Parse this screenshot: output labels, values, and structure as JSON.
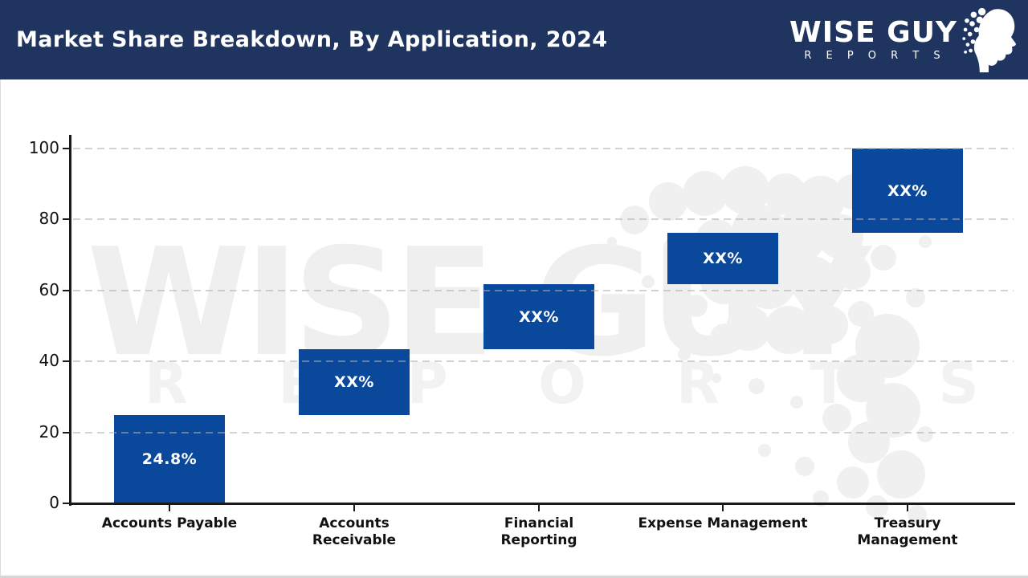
{
  "header": {
    "title": "Market Share Breakdown, By Application, 2024",
    "logo": {
      "line1": "WISE GUY",
      "line2": "R E P O R T S"
    },
    "bg_color": "#203460"
  },
  "watermark": {
    "line1": "WISE GUY",
    "line2": "R E P O R T S"
  },
  "chart_data": {
    "type": "bar",
    "subtype": "waterfall",
    "title": "Market Share Breakdown, By Application, 2024",
    "categories": [
      "Accounts Payable",
      "Accounts\nReceivable",
      "Financial\nReporting",
      "Expense Management",
      "Treasury\nManagement"
    ],
    "segments": [
      {
        "category": "Accounts Payable",
        "start": 0,
        "end": 24.8,
        "label": "24.8%"
      },
      {
        "category": "Accounts Receivable",
        "start": 24.8,
        "end": 43.4,
        "label": "XX%"
      },
      {
        "category": "Financial Reporting",
        "start": 43.4,
        "end": 61.7,
        "label": "XX%"
      },
      {
        "category": "Expense Management",
        "start": 61.7,
        "end": 76.2,
        "label": "XX%"
      },
      {
        "category": "Treasury Management",
        "start": 76.2,
        "end": 100.0,
        "label": "XX%"
      }
    ],
    "ylim": [
      0,
      100
    ],
    "yticks": [
      0,
      20,
      40,
      60,
      80,
      100
    ],
    "xlabel": "",
    "ylabel": "",
    "grid": "dashed-horizontal",
    "legend": "none",
    "bar_color": "#0a489c",
    "bar_label_color": "#ffffff",
    "axis_color": "#1a1a1a"
  }
}
